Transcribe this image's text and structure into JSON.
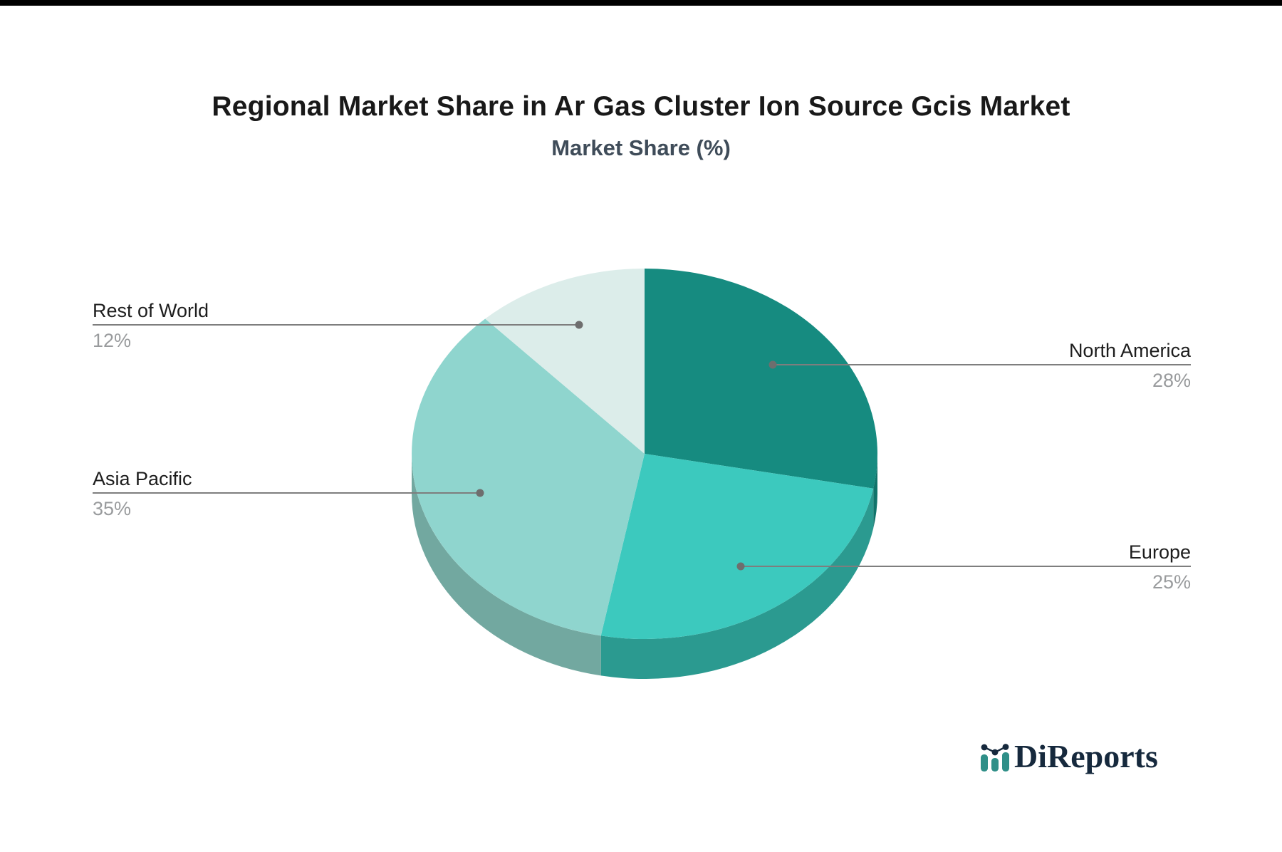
{
  "chart_data": {
    "type": "pie",
    "title": "Regional Market Share in Ar Gas Cluster Ion Source Gcis Market",
    "subtitle": "Market Share (%)",
    "unit": "%",
    "style": "3d-pie",
    "start_angle_deg": 0,
    "direction": "clockwise",
    "legend_position": "none",
    "labeling": "leader-lines",
    "slices": [
      {
        "label": "North America",
        "value": 28,
        "display": "28%",
        "color": "#168B80",
        "side_color": "#11746B"
      },
      {
        "label": "Europe",
        "value": 25,
        "display": "25%",
        "color": "#3CC9BE",
        "side_color": "#2B9A90"
      },
      {
        "label": "Asia Pacific",
        "value": 35,
        "display": "35%",
        "color": "#8FD5CE",
        "side_color": "#72A8A0"
      },
      {
        "label": "Rest of World",
        "value": 12,
        "display": "12%",
        "color": "#DCEDEA",
        "side_color": "#B9CFCB"
      }
    ]
  },
  "colors": {
    "leader_line": "#7E7E7E",
    "leader_dot": "#6E6E6E",
    "title": "#191919",
    "subtitle": "#3F4C59",
    "label": "#1D1D1D",
    "percent": "#999B9D",
    "logo_navy": "#16293D",
    "logo_teal": "#2F8F88"
  },
  "logo": {
    "text": "DiReports",
    "icon": "trend-bar-chart-icon"
  }
}
